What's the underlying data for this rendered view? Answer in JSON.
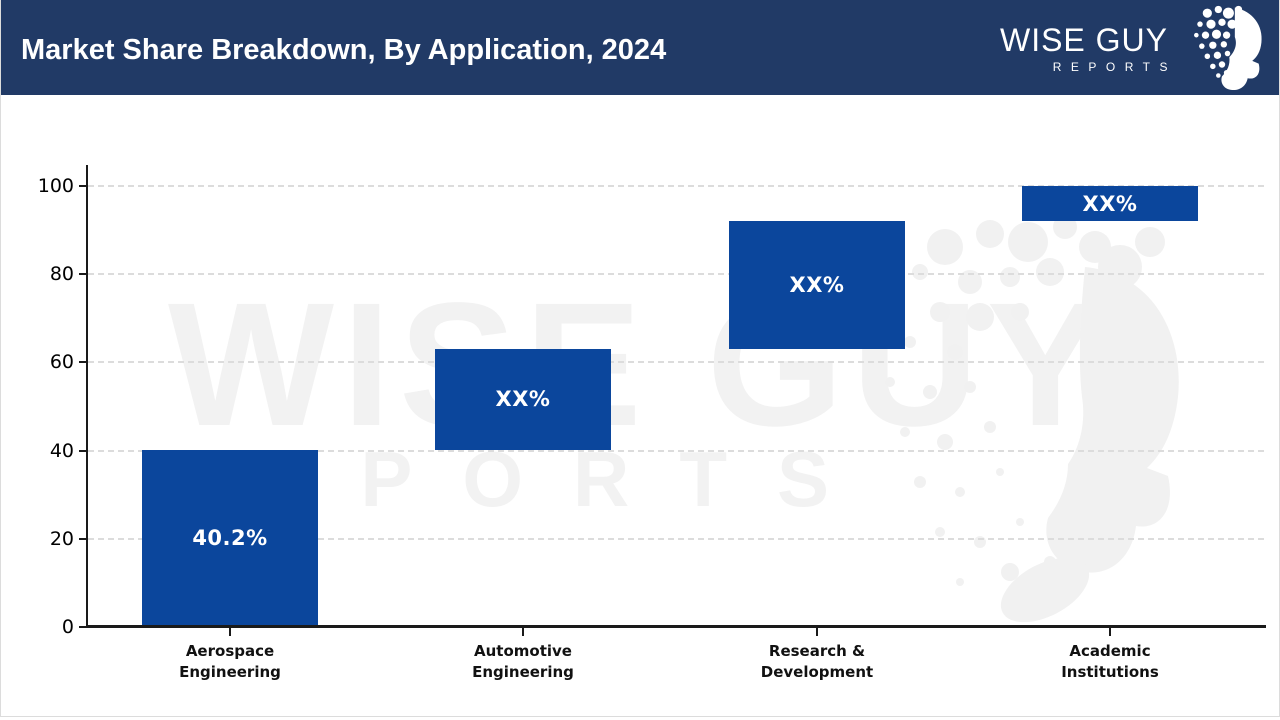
{
  "header": {
    "title": "Market Share Breakdown, By Application, 2024",
    "logo": {
      "name": "WISE GUY",
      "tagline": "REPORTS"
    }
  },
  "watermark": {
    "line1": "WISE GUY",
    "line2": "REPORTS"
  },
  "chart_data": {
    "type": "bar",
    "subtype": "floating-waterfall",
    "title": "Market Share Breakdown, By Application, 2024",
    "categories": [
      "Aerospace Engineering",
      "Automotive Engineering",
      "Research & Development",
      "Academic Institutions"
    ],
    "category_label_lines": [
      [
        "Aerospace",
        "Engineering"
      ],
      [
        "Automotive",
        "Engineering"
      ],
      [
        "Research &",
        "Development"
      ],
      [
        "Academic",
        "Institutions"
      ]
    ],
    "segments": [
      {
        "category": "Aerospace Engineering",
        "start": 0,
        "end": 40.2,
        "label": "40.2%"
      },
      {
        "category": "Automotive Engineering",
        "start": 40.2,
        "end": 63,
        "label": "XX%"
      },
      {
        "category": "Research & Development",
        "start": 63,
        "end": 92,
        "label": "XX%"
      },
      {
        "category": "Academic Institutions",
        "start": 92,
        "end": 100,
        "label": "XX%"
      }
    ],
    "xlabel": "",
    "ylabel": "",
    "ylim": [
      0,
      100
    ],
    "yticks": [
      0,
      20,
      40,
      60,
      80,
      100
    ],
    "grid": "horizontal-dashed",
    "legend": "none",
    "colors": {
      "bar": "#0b469c",
      "bar_label": "#ffffff",
      "grid": "#dcdcdc",
      "axis": "#1a1a1a",
      "header_bg": "#213a66",
      "watermark": "#f2f2f2"
    }
  }
}
